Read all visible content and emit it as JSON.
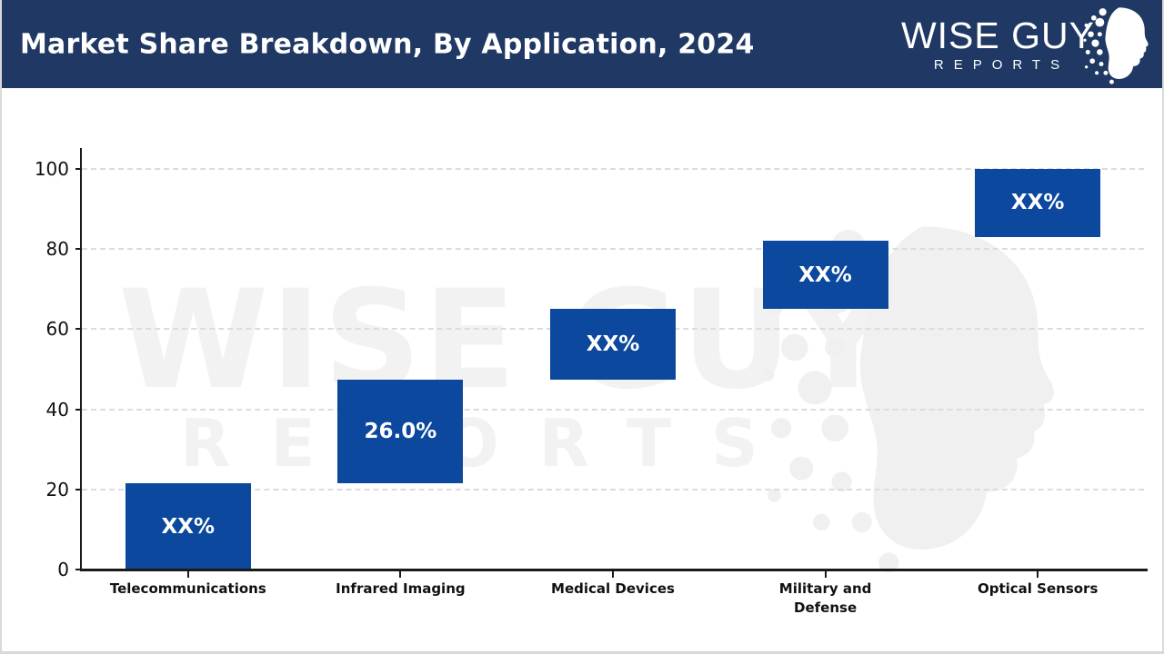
{
  "header": {
    "title": "Market Share Breakdown, By Application, 2024",
    "logo": {
      "line1": "WISE GUY",
      "line2": "REPORTS",
      "icon": "dotted-face-profile-icon"
    }
  },
  "watermark": {
    "line1": "WISE GUY",
    "line2": "REPORTS",
    "icon": "dotted-face-profile-icon"
  },
  "colors": {
    "header_bg": "#203864",
    "bar": "#0b489e",
    "watermark": "#f2f2f2",
    "gridline": "#dcdcdc"
  },
  "chart_data": {
    "type": "bar",
    "subtype": "waterfall",
    "title": "Market Share Breakdown, By Application, 2024",
    "xlabel": "",
    "ylabel": "",
    "categories": [
      "Telecommunications",
      "Infrared Imaging",
      "Medical Devices",
      "Military and\nDefense",
      "Optical Sensors"
    ],
    "segments": [
      {
        "category": "Telecommunications",
        "start": 0,
        "end": 21.5,
        "label": "XX%"
      },
      {
        "category": "Infrared Imaging",
        "start": 21.5,
        "end": 47.5,
        "label": "26.0%"
      },
      {
        "category": "Medical Devices",
        "start": 47.5,
        "end": 65,
        "label": "XX%"
      },
      {
        "category": "Military and\nDefense",
        "start": 65,
        "end": 82,
        "label": "XX%"
      },
      {
        "category": "Optical Sensors",
        "start": 83,
        "end": 100,
        "label": "XX%"
      }
    ],
    "yticks": [
      0,
      20,
      40,
      60,
      80,
      100
    ],
    "ylim": [
      0,
      105
    ],
    "grid": true,
    "gridline_style": "dashed",
    "legend": "none",
    "bar_color": "#0b489e",
    "bar_label_color": "#ffffff"
  }
}
